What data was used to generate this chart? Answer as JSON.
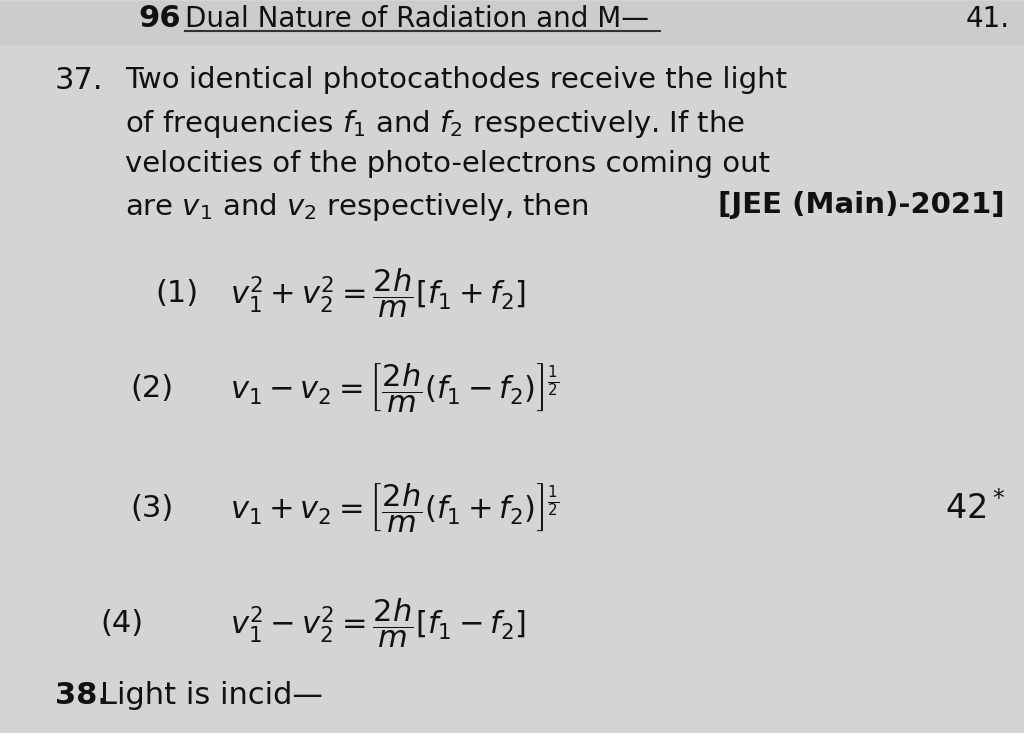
{
  "background_color": "#d4d4d4",
  "header_bg": "#c8c8c8",
  "title_96": "96",
  "title_rest": "Dual Nature of Radiation and M—",
  "page_number_top": "41.",
  "question_number": "37.",
  "q_line1": "Two identical photocathodes receive the light",
  "q_line2": "of frequencies $f_1$ and $f_2$ respectively. If the",
  "q_line3": "velocities of the photo-electrons coming out",
  "q_line4": "are $v_1$ and $v_2$ respectively, then",
  "jee_tag": "[JEE (Main)-2021]",
  "opt1_label": "(1)",
  "opt1_eq": "$v_1^2 + v_2^2 = \\dfrac{2h}{m}[f_1 + f_2]$",
  "opt2_label": "(2)",
  "opt2_eq": "$v_1 - v_2 = \\left[\\dfrac{2h}{m}(f_1 - f_2)\\right]^{\\frac{1}{2}}$",
  "opt3_label": "(3)",
  "opt3_eq": "$v_1 + v_2 = \\left[\\dfrac{2h}{m}(f_1 + f_2)\\right]^{\\frac{1}{2}}$",
  "opt4_label": "(4)",
  "opt4_eq": "$v_1^2 - v_2^2 = \\dfrac{2h}{m}[f_1 - f_2]$",
  "side_number": "$42^*$",
  "footer_label": "38.",
  "footer_text": "Light is incid—",
  "text_color": "#111111",
  "header_line_color": "#333333",
  "fs_header": 20,
  "fs_qnum": 22,
  "fs_qtext": 21,
  "fs_opt_label": 22,
  "fs_opt_eq": 22,
  "fs_jee": 21,
  "fs_side": 22,
  "fs_footer": 22
}
